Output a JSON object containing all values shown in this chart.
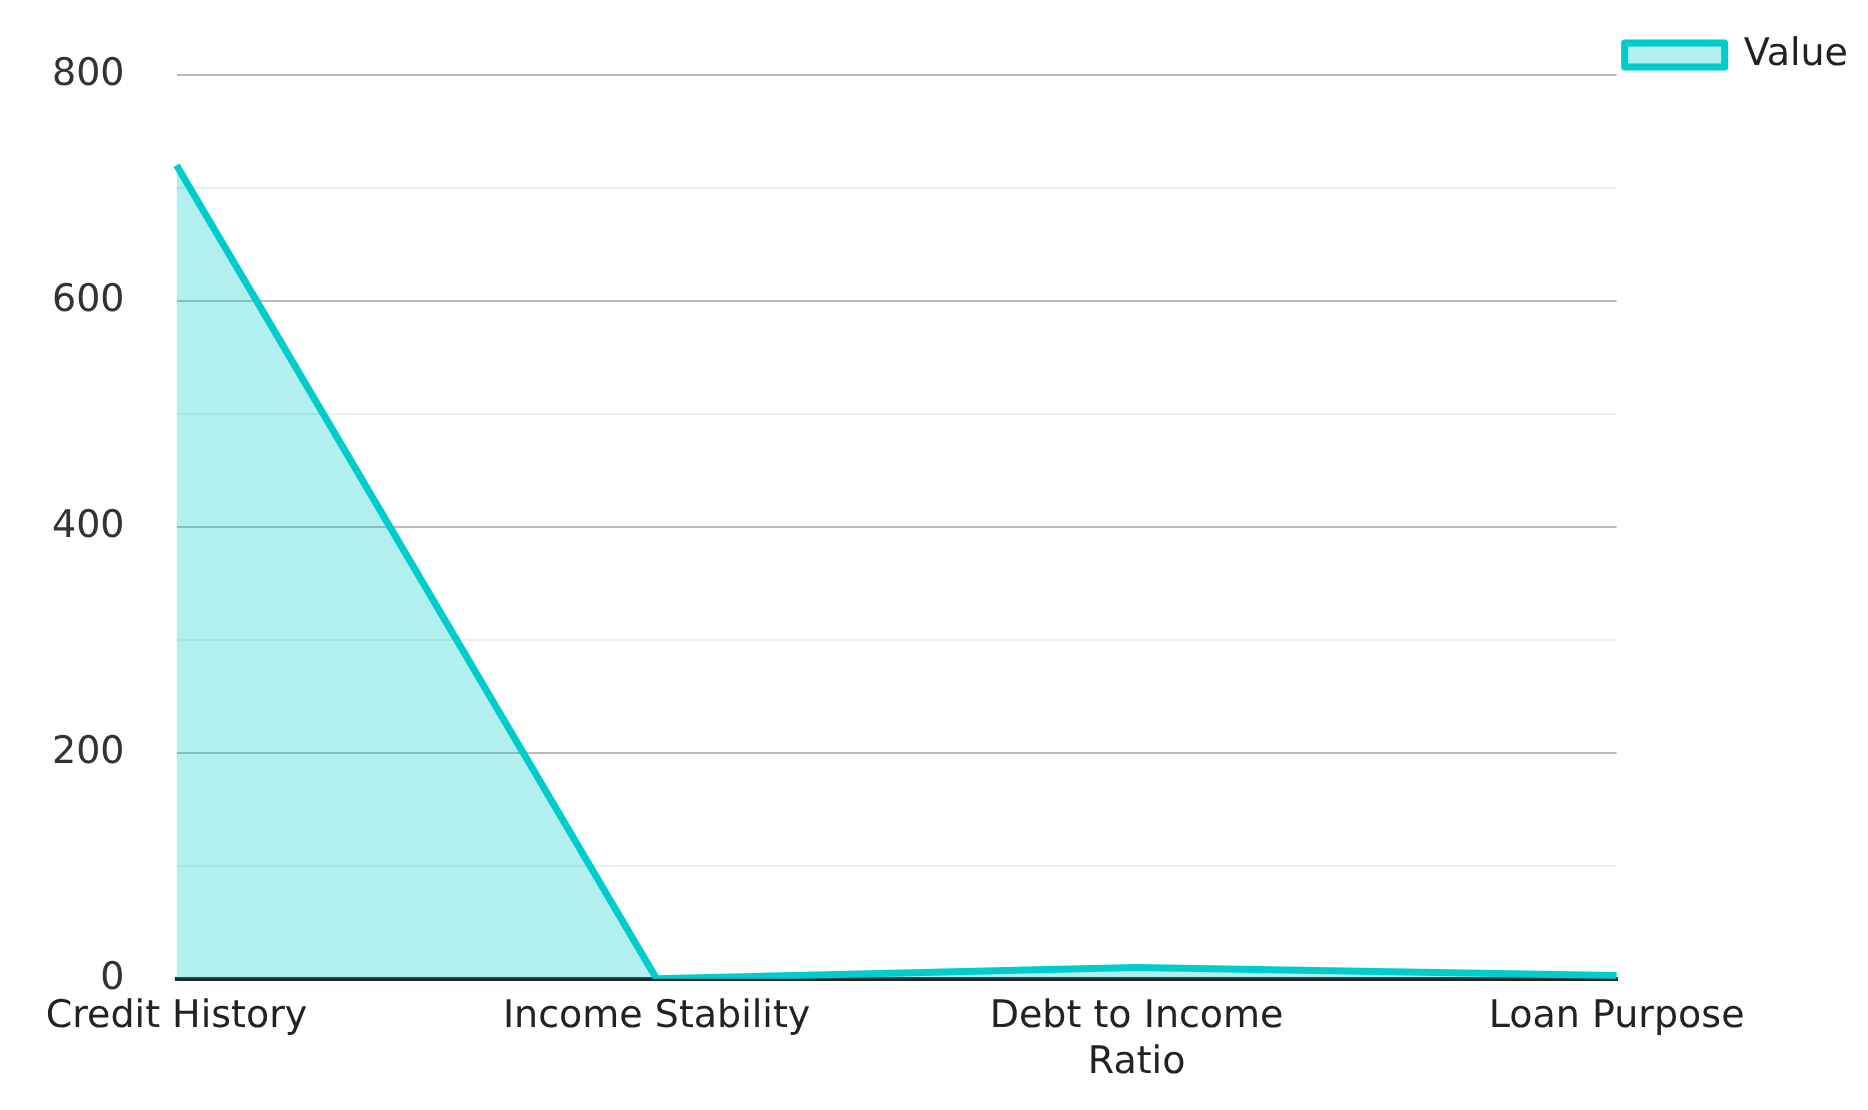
{
  "chart_data": {
    "type": "area",
    "categories": [
      "Credit History",
      "Income Stability",
      "Debt to Income Ratio",
      "Loan Purpose"
    ],
    "series": [
      {
        "name": "Value",
        "color": "#00cccc",
        "values": [
          720,
          0,
          10,
          3
        ]
      }
    ],
    "ylim": [
      0,
      800
    ],
    "yticks": [
      0,
      {
        "value": 100,
        "label": null
      },
      200,
      {
        "value": 300,
        "label": null
      },
      400,
      {
        "value": 500,
        "label": null
      },
      600,
      {
        "value": 700,
        "label": null
      },
      800
    ],
    "grid": "y",
    "legend": "top right",
    "marker": "none"
  }
}
